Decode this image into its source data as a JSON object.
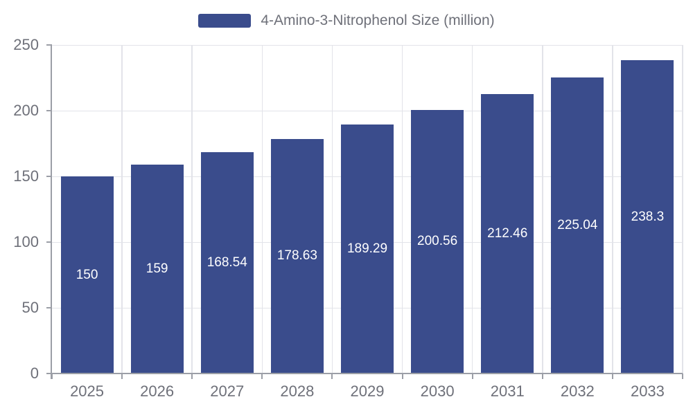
{
  "legend": {
    "label": "4-Amino-3-Nitrophenol Size (million)"
  },
  "colors": {
    "bar": "#3A4C8C",
    "grid": "#E2E3E9",
    "axis": "#9B9EA6",
    "text": "#6E7079",
    "bar_label": "#FFFFFF",
    "background": "#FFFFFF"
  },
  "chart_data": {
    "type": "bar",
    "title": "4-Amino-3-Nitrophenol Size (million)",
    "series_name": "4-Amino-3-Nitrophenol Size (million)",
    "categories": [
      "2025",
      "2026",
      "2027",
      "2028",
      "2029",
      "2030",
      "2031",
      "2032",
      "2033"
    ],
    "values": [
      150,
      159,
      168.54,
      178.63,
      189.29,
      200.56,
      212.46,
      225.04,
      238.3
    ],
    "xlabel": "",
    "ylabel": "",
    "ylim": [
      0,
      250
    ],
    "yticks": [
      0,
      50,
      100,
      150,
      200,
      250
    ],
    "grid": true,
    "legend_position": "top-center",
    "bar_label_position": "inside-center"
  }
}
